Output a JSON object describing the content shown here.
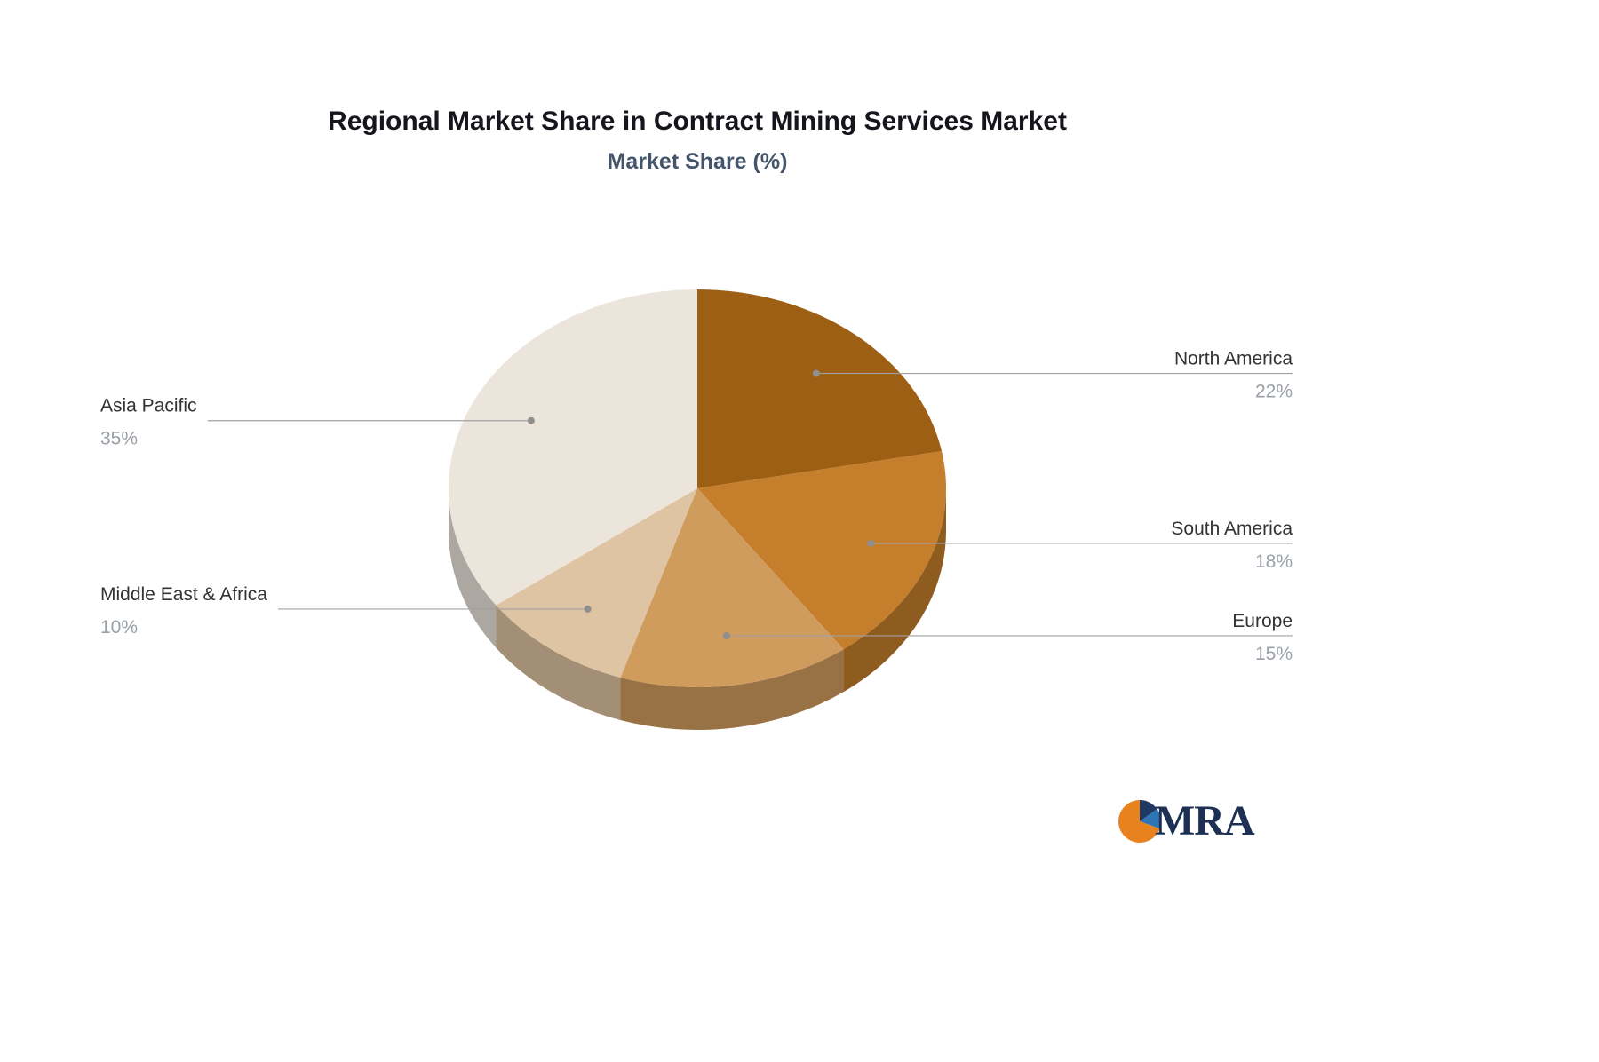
{
  "chart_data": {
    "type": "pie",
    "title": "Regional Market Share in Contract Mining Services Market",
    "subtitle": "Market Share (%)",
    "unit": "%",
    "start_angle_deg": 0,
    "direction": "clockwise",
    "style": "3d-pie",
    "slices": [
      {
        "label": "North America",
        "value": 22,
        "color": "#9d5f14"
      },
      {
        "label": "South America",
        "value": 18,
        "color": "#c47e2c"
      },
      {
        "label": "Europe",
        "value": 15,
        "color": "#d09c5e"
      },
      {
        "label": "Middle East & Africa",
        "value": 10,
        "color": "#dec4a2"
      },
      {
        "label": "Asia Pacific",
        "value": 35,
        "color": "#ece5db"
      }
    ],
    "label_color": "#333333",
    "percent_color": "#9aa0a6",
    "leader_line_color": "#a0a0a0",
    "legend": "none",
    "background": "#ffffff"
  },
  "logo": {
    "text": "MRA",
    "icon_colors": {
      "orange": "#e8821f",
      "dark_blue": "#1f3864",
      "light_blue": "#2e75b6"
    }
  }
}
